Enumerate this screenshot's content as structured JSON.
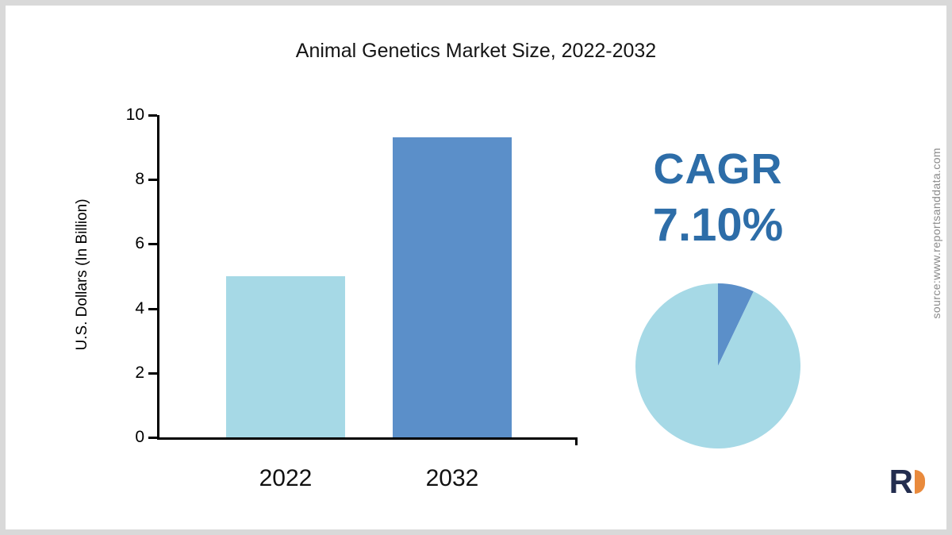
{
  "source": "source:www.reportsanddata.com",
  "logo": {
    "letter": "R",
    "accent_color": "#e98a3c",
    "letter_color": "#232d4f"
  },
  "cagr": {
    "label": "CAGR",
    "value": "7.10%",
    "color": "#2d6da8"
  },
  "chart_data": [
    {
      "type": "bar",
      "title": "Animal Genetics Market Size, 2022-2032",
      "categories": [
        "2022",
        "2032"
      ],
      "values": [
        5.0,
        9.3
      ],
      "colors": [
        "#a6d9e6",
        "#5b8fc9"
      ],
      "xlabel": "",
      "ylabel": "U.S. Dollars (In Billion)",
      "ylim": [
        0,
        10
      ],
      "yticks": [
        0,
        2,
        4,
        6,
        8,
        10
      ],
      "grid": false,
      "legend": false
    },
    {
      "type": "pie",
      "slices": [
        {
          "label": "cagr-7.10-percent",
          "value": 7.1,
          "color": "#5b8fc9"
        },
        {
          "label": "remainder",
          "value": 92.9,
          "color": "#a6d9e6"
        }
      ],
      "start_angle": "top",
      "direction": "clockwise",
      "legend": false
    }
  ]
}
